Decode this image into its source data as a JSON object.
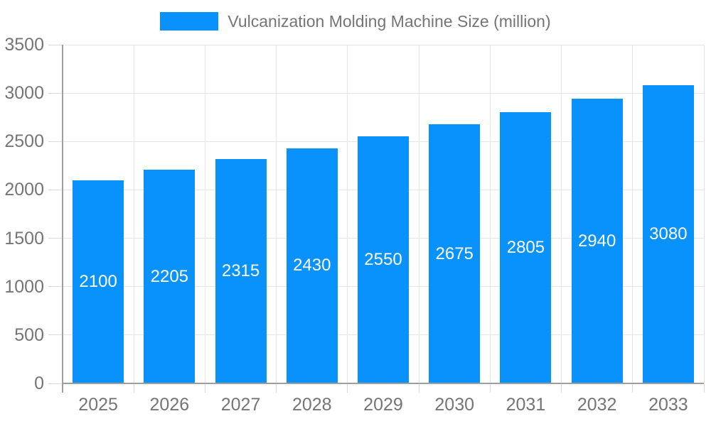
{
  "chart_data": {
    "type": "bar",
    "title": "Vulcanization Molding Machine Size (million)",
    "categories": [
      "2025",
      "2026",
      "2027",
      "2028",
      "2029",
      "2030",
      "2031",
      "2032",
      "2033"
    ],
    "values": [
      2100,
      2205,
      2315,
      2430,
      2550,
      2675,
      2805,
      2940,
      3080
    ],
    "xlabel": "",
    "ylabel": "",
    "ylim": [
      0,
      3500
    ],
    "y_ticks": [
      0,
      500,
      1000,
      1500,
      2000,
      2500,
      3000,
      3500
    ],
    "grid": true,
    "legend_position": "top",
    "bar_labels_inside": true,
    "colors": {
      "bar": "#0992fb",
      "bar_label": "#ffffff",
      "axis_text": "#757575",
      "grid_line": "#e6e6e6",
      "tick_line": "#d9d9d9",
      "axis_line": "#9e9e9e",
      "background": "#ffffff"
    }
  }
}
